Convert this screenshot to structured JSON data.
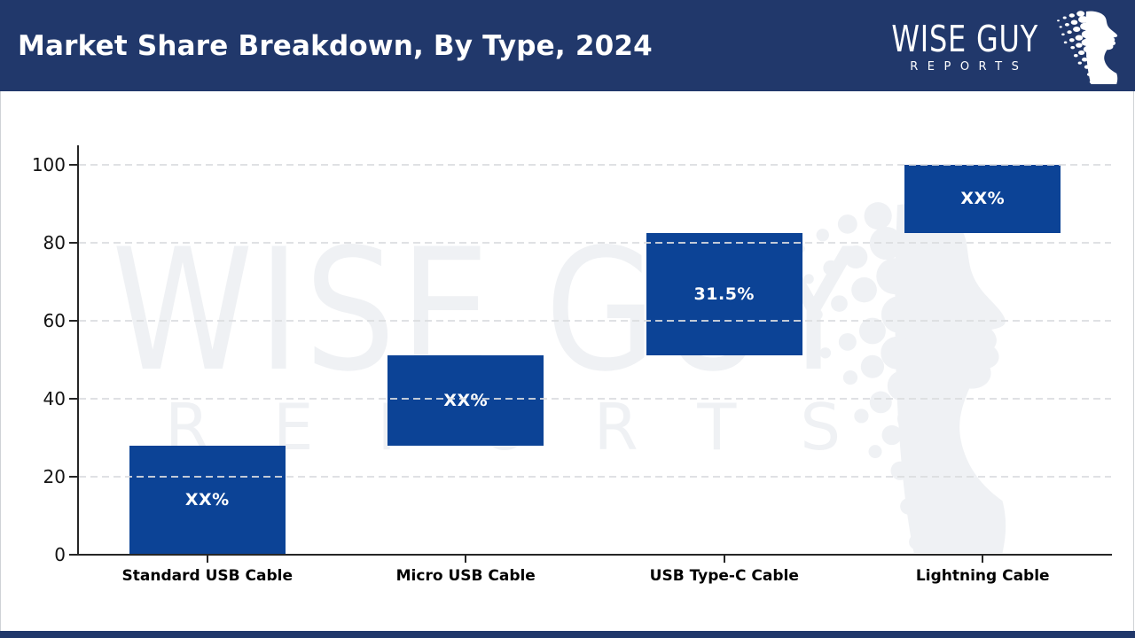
{
  "header": {
    "title": "Market Share Breakdown, By Type, 2024",
    "logo": {
      "line1": "WISE GUY",
      "line2": "REPORTS"
    }
  },
  "watermark": {
    "line1": "WISE GUY",
    "line2": "REPORTS"
  },
  "chart_data": {
    "type": "bar",
    "subtype": "waterfall",
    "title": "Market Share Breakdown, By Type, 2024",
    "xlabel": "",
    "ylabel": "",
    "categories": [
      "Standard USB Cable",
      "Micro USB Cable",
      "USB Type-C Cable",
      "Lightning Cable"
    ],
    "segments": [
      {
        "category": "Standard USB Cable",
        "start": 0,
        "end": 28,
        "value": 28,
        "label": "XX%"
      },
      {
        "category": "Micro USB Cable",
        "start": 28,
        "end": 51.1,
        "value": 23.1,
        "label": "XX%"
      },
      {
        "category": "USB Type-C Cable",
        "start": 51.1,
        "end": 82.6,
        "value": 31.5,
        "label": "31.5%"
      },
      {
        "category": "Lightning Cable",
        "start": 82.6,
        "end": 100,
        "value": 17.4,
        "label": "XX%"
      }
    ],
    "yticks": [
      0,
      20,
      40,
      60,
      80,
      100
    ],
    "ylim": [
      0,
      105
    ],
    "grid": "dashed-horizontal",
    "legend": "none",
    "colors": {
      "bar": "#0c4396",
      "bar_label": "#ffffff",
      "header_band": "#21386b",
      "gridline": "#dcdcdc",
      "axis": "#262626",
      "watermark": "#eff1f4"
    }
  }
}
